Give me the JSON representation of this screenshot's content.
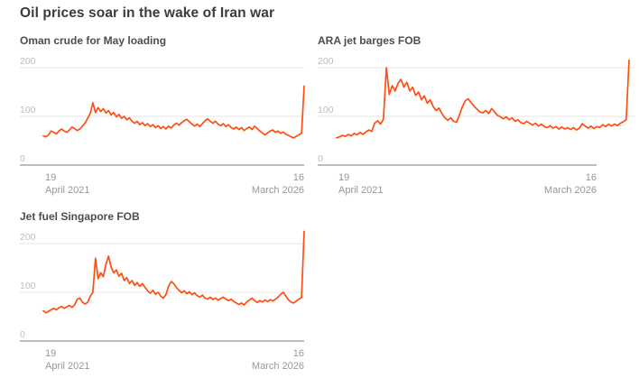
{
  "page": {
    "title": "Oil prices soar in the wake of Iran war",
    "background": "#ffffff"
  },
  "colors": {
    "line": "#ff4e11",
    "gridline": "#e6e6e6",
    "baseline": "#a9a9a9",
    "y_tick_text": "#bdbdbd",
    "x_label_text": "#979797",
    "title_text": "#3b3b3b",
    "subtitle_text": "#4d4d4d"
  },
  "x_axis": {
    "start_day": "19",
    "start_monthyear": "April 2021",
    "end_day": "16",
    "end_monthyear": "March 2026"
  },
  "chart_data": [
    {
      "type": "line",
      "title": "Oman crude for May loading",
      "xlabel": "",
      "ylabel": "",
      "ylim": [
        0,
        200
      ],
      "y_ticks": [
        200,
        100,
        0
      ],
      "y_gridlines": [
        200,
        100
      ],
      "x_tick_labels": [
        "19 April 2021",
        "16 March 2026"
      ],
      "legend": "none",
      "values": [
        60,
        58,
        62,
        70,
        67,
        64,
        70,
        74,
        70,
        67,
        72,
        78,
        75,
        71,
        74,
        80,
        86,
        96,
        106,
        128,
        108,
        118,
        110,
        116,
        107,
        112,
        103,
        108,
        99,
        104,
        96,
        100,
        93,
        97,
        90,
        86,
        90,
        83,
        87,
        81,
        85,
        79,
        83,
        77,
        81,
        75,
        79,
        74,
        80,
        76,
        82,
        86,
        82,
        87,
        91,
        94,
        89,
        84,
        80,
        84,
        79,
        85,
        91,
        95,
        90,
        86,
        90,
        84,
        81,
        85,
        79,
        83,
        77,
        74,
        78,
        73,
        77,
        71,
        75,
        78,
        73,
        80,
        75,
        70,
        66,
        62,
        66,
        70,
        72,
        67,
        70,
        65,
        68,
        63,
        61,
        58,
        56,
        59,
        62,
        65,
        162
      ]
    },
    {
      "type": "line",
      "title": "ARA jet barges FOB",
      "xlabel": "",
      "ylabel": "",
      "ylim": [
        0,
        200
      ],
      "y_ticks": [
        200,
        100,
        0
      ],
      "y_gridlines": [
        200,
        100
      ],
      "x_tick_labels": [
        "19 April 2021",
        "16 March 2026"
      ],
      "legend": "none",
      "values": [
        56,
        58,
        61,
        59,
        63,
        60,
        65,
        62,
        67,
        63,
        68,
        72,
        69,
        86,
        91,
        84,
        94,
        200,
        145,
        163,
        152,
        168,
        176,
        160,
        170,
        152,
        160,
        143,
        150,
        134,
        142,
        127,
        134,
        120,
        112,
        117,
        106,
        97,
        92,
        97,
        90,
        88,
        103,
        120,
        132,
        136,
        128,
        121,
        115,
        109,
        107,
        112,
        106,
        116,
        109,
        102,
        99,
        95,
        99,
        93,
        97,
        90,
        93,
        87,
        85,
        90,
        86,
        82,
        86,
        80,
        84,
        79,
        77,
        81,
        76,
        79,
        74,
        78,
        74,
        77,
        73,
        77,
        72,
        76,
        85,
        80,
        76,
        80,
        75,
        79,
        77,
        83,
        79,
        84,
        80,
        84,
        81,
        86,
        89,
        93,
        215
      ]
    },
    {
      "type": "line",
      "title": "Jet fuel Singapore FOB",
      "xlabel": "",
      "ylabel": "",
      "ylim": [
        0,
        200
      ],
      "y_ticks": [
        200,
        100,
        0
      ],
      "y_gridlines": [
        200,
        100
      ],
      "x_tick_labels": [
        "19 April 2021",
        "16 March 2026"
      ],
      "legend": "none",
      "values": [
        62,
        58,
        61,
        64,
        67,
        64,
        68,
        71,
        67,
        70,
        73,
        69,
        74,
        86,
        88,
        80,
        76,
        79,
        92,
        100,
        170,
        128,
        140,
        132,
        158,
        174,
        152,
        140,
        146,
        133,
        139,
        124,
        130,
        118,
        124,
        114,
        120,
        112,
        118,
        110,
        103,
        98,
        104,
        96,
        100,
        92,
        88,
        95,
        112,
        122,
        118,
        110,
        104,
        99,
        103,
        97,
        101,
        95,
        99,
        93,
        90,
        94,
        88,
        86,
        90,
        85,
        88,
        84,
        87,
        90,
        86,
        83,
        86,
        81,
        78,
        75,
        78,
        74,
        80,
        84,
        88,
        83,
        79,
        83,
        80,
        84,
        81,
        85,
        82,
        86,
        90,
        96,
        100,
        92,
        84,
        80,
        78,
        82,
        86,
        89,
        225
      ]
    }
  ]
}
